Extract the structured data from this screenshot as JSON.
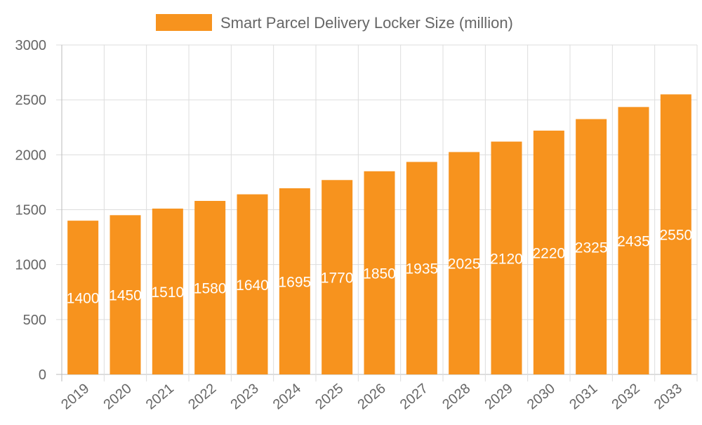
{
  "chart_data": {
    "type": "bar",
    "title": "",
    "xlabel": "",
    "ylabel": "",
    "categories": [
      "2019",
      "2020",
      "2021",
      "2022",
      "2023",
      "2024",
      "2025",
      "2026",
      "2027",
      "2028",
      "2029",
      "2030",
      "2031",
      "2032",
      "2033"
    ],
    "series": [
      {
        "name": "Smart Parcel Delivery Locker Size (million)",
        "values": [
          1400,
          1450,
          1510,
          1580,
          1640,
          1695,
          1770,
          1850,
          1935,
          2025,
          2120,
          2220,
          2325,
          2435,
          2550
        ],
        "color": "#f7931e"
      }
    ],
    "ylim": [
      0,
      3000
    ],
    "yticks": [
      0,
      500,
      1000,
      1500,
      2000,
      2500,
      3000
    ],
    "grid": true,
    "legend": "top-center",
    "data_labels": true
  }
}
